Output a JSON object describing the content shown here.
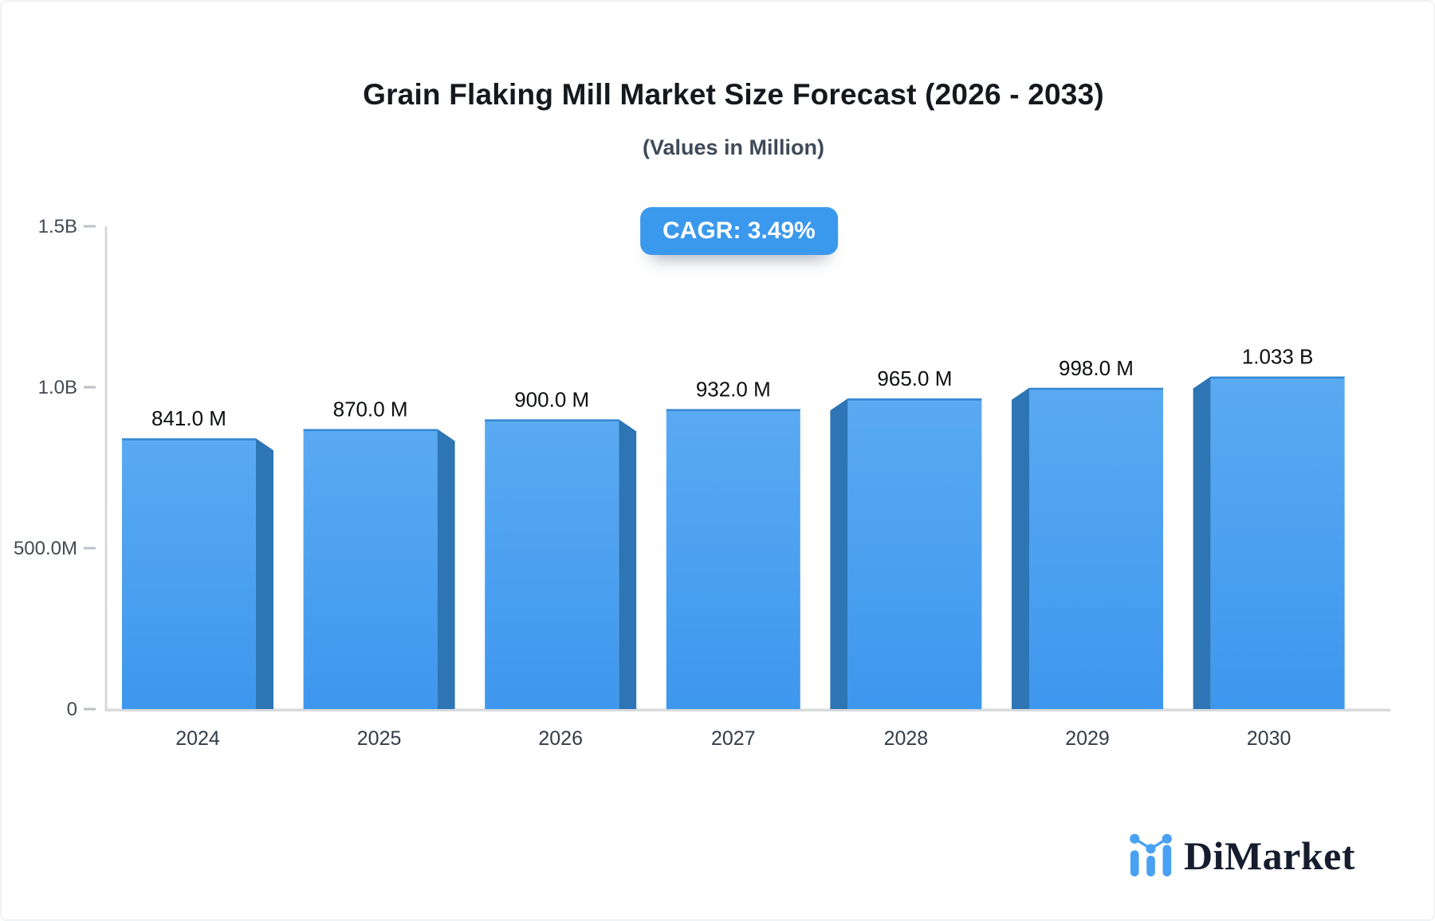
{
  "header": {
    "title": "Grain Flaking Mill Market Size Forecast (2026 - 2033)",
    "subtitle": "(Values in Million)",
    "cagr_label": "CAGR: 3.49%"
  },
  "brand": {
    "name": "DiMarket",
    "logo_icon": "bar-chart-sparkline-icon"
  },
  "colors": {
    "badge_blue": "#3b99ed",
    "bar_front_top": "#5aaaf2",
    "bar_front_bottom": "#3e97ee",
    "bar_top_stroke": "#3688d2",
    "bar_side_dark": "#2d75b4",
    "axis_gray": "#d8dadc",
    "tick_dash_gray": "#bcc1c6",
    "tick_text": "#434a52",
    "year_text": "#333c47",
    "value_text": "#0c0e10",
    "title_text": "#15181c",
    "subtitle_text": "#3f4a59",
    "logo_navy": "#161d2e",
    "logo_blue": "#49a1f3"
  },
  "chart_data": {
    "type": "bar",
    "title": "Grain Flaking Mill Market Size Forecast (2026 - 2033)",
    "subtitle": "(Values in Million)",
    "cagr_percent": 3.49,
    "categories": [
      "2024",
      "2025",
      "2026",
      "2027",
      "2028",
      "2029",
      "2030"
    ],
    "values_millions": [
      841,
      870,
      900,
      932,
      965,
      998,
      1033
    ],
    "bar_labels": [
      "841.0 M",
      "870.0 M",
      "900.0 M",
      "932.0 M",
      "965.0 M",
      "998.0 M",
      "1.033 B"
    ],
    "y_tick_labels": [
      "0",
      "500.0M",
      "1.0B",
      "1.5B"
    ],
    "y_tick_values_millions": [
      0,
      500,
      1000,
      1500
    ],
    "ylim_millions": [
      0,
      1500
    ],
    "grid": false,
    "legend": false,
    "effect_3d": true
  }
}
